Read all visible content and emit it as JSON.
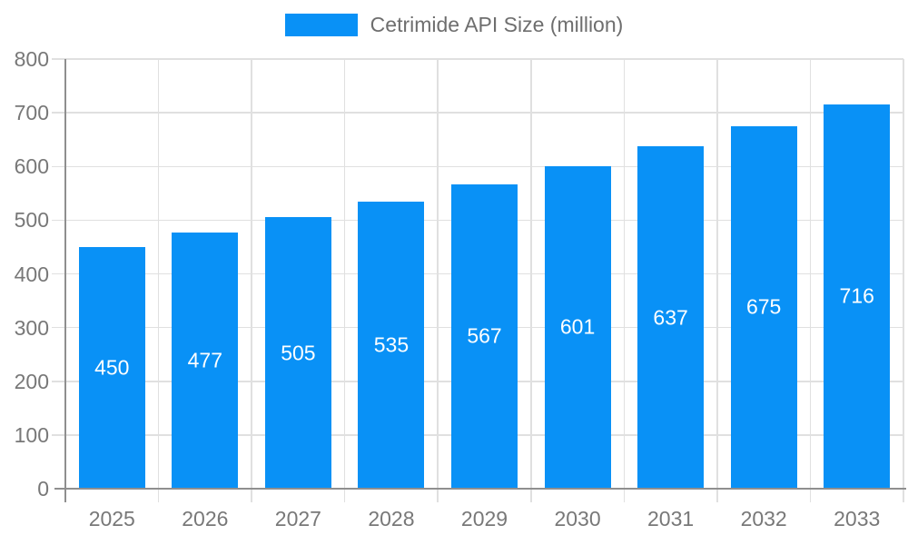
{
  "legend": {
    "items": [
      {
        "label": "Cetrimide API Size (million)",
        "swatch_color": "#0991f6"
      }
    ]
  },
  "chart_data": {
    "type": "bar",
    "title": "Cetrimide API Size (million)",
    "categories": [
      "2025",
      "2026",
      "2027",
      "2028",
      "2029",
      "2030",
      "2031",
      "2032",
      "2033"
    ],
    "values": [
      450,
      477,
      505,
      535,
      567,
      601,
      637,
      675,
      716
    ],
    "xlabel": "",
    "ylabel": "",
    "ylim": [
      0,
      800
    ],
    "ytick_step": 100,
    "yticks": [
      0,
      100,
      200,
      300,
      400,
      500,
      600,
      700,
      800
    ],
    "grid": true,
    "legend_position": "top",
    "value_labels_shown": true,
    "value_label_position": "middle"
  },
  "colors": {
    "background": "#ffffff",
    "bar": "#0991f6",
    "grid_line": "#e0e0e0",
    "axis_line": "#8f8f8f",
    "tick_text": "#787878",
    "legend_text": "#6e6e6e",
    "bar_label_text": "#ffffff"
  }
}
